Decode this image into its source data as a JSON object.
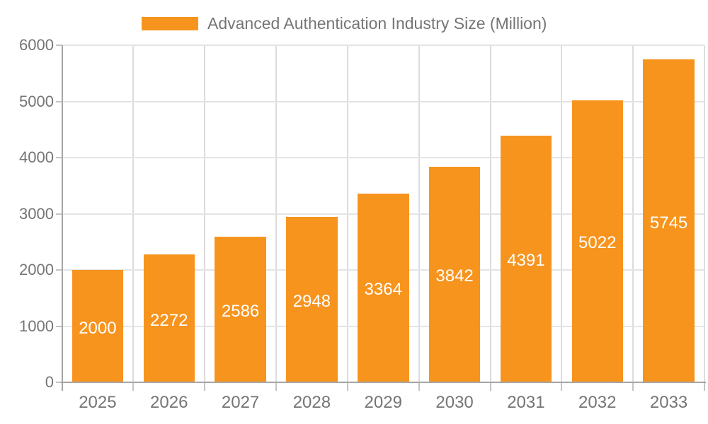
{
  "chart_data": {
    "type": "bar",
    "title": "",
    "legend": {
      "label": "Advanced Authentication Industry Size (Million)",
      "position": "top"
    },
    "categories": [
      "2025",
      "2026",
      "2027",
      "2028",
      "2029",
      "2030",
      "2031",
      "2032",
      "2033"
    ],
    "values": [
      2000,
      2272,
      2586,
      2948,
      3364,
      3842,
      4391,
      5022,
      5745
    ],
    "xlabel": "",
    "ylabel": "",
    "ylim": [
      0,
      6000
    ],
    "yticks": [
      0,
      1000,
      2000,
      3000,
      4000,
      5000,
      6000
    ],
    "grid": true,
    "colors": {
      "bar": "#F7941E",
      "value_label": "#FFFFFF",
      "axis_label": "#757575",
      "gridline": "#E4E4E4",
      "axis_line": "#A6A6A6"
    }
  }
}
